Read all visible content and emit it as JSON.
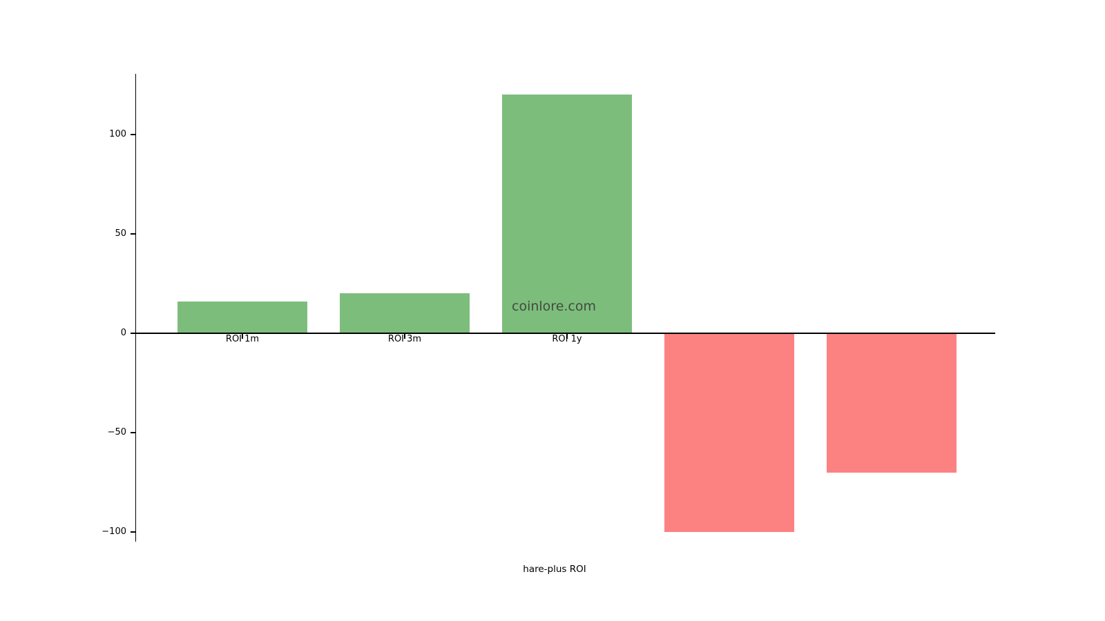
{
  "chart_data": {
    "type": "bar",
    "categories": [
      "ROI 1m",
      "ROI 3m",
      "ROI 1y",
      "",
      ""
    ],
    "values": [
      16,
      20,
      120,
      -100,
      -70
    ],
    "bar_colors": [
      "#7dbd7c",
      "#7dbd7c",
      "#7dbd7c",
      "#fc8181",
      "#fc8181"
    ],
    "positive_color": "#7dbd7c",
    "negative_color": "#fc8181",
    "title": "hare-plus ROI",
    "title_position": "bottom",
    "xlabel": "",
    "ylabel": "",
    "y_ticks": [
      -100,
      -50,
      0,
      50,
      100
    ],
    "ylim": [
      -104.9,
      130.6
    ],
    "grid": false,
    "legend_position": "none",
    "watermark": "coinlore.com",
    "axis_color": "#000000",
    "text_color": "#000000",
    "watermark_color": "#373737"
  }
}
